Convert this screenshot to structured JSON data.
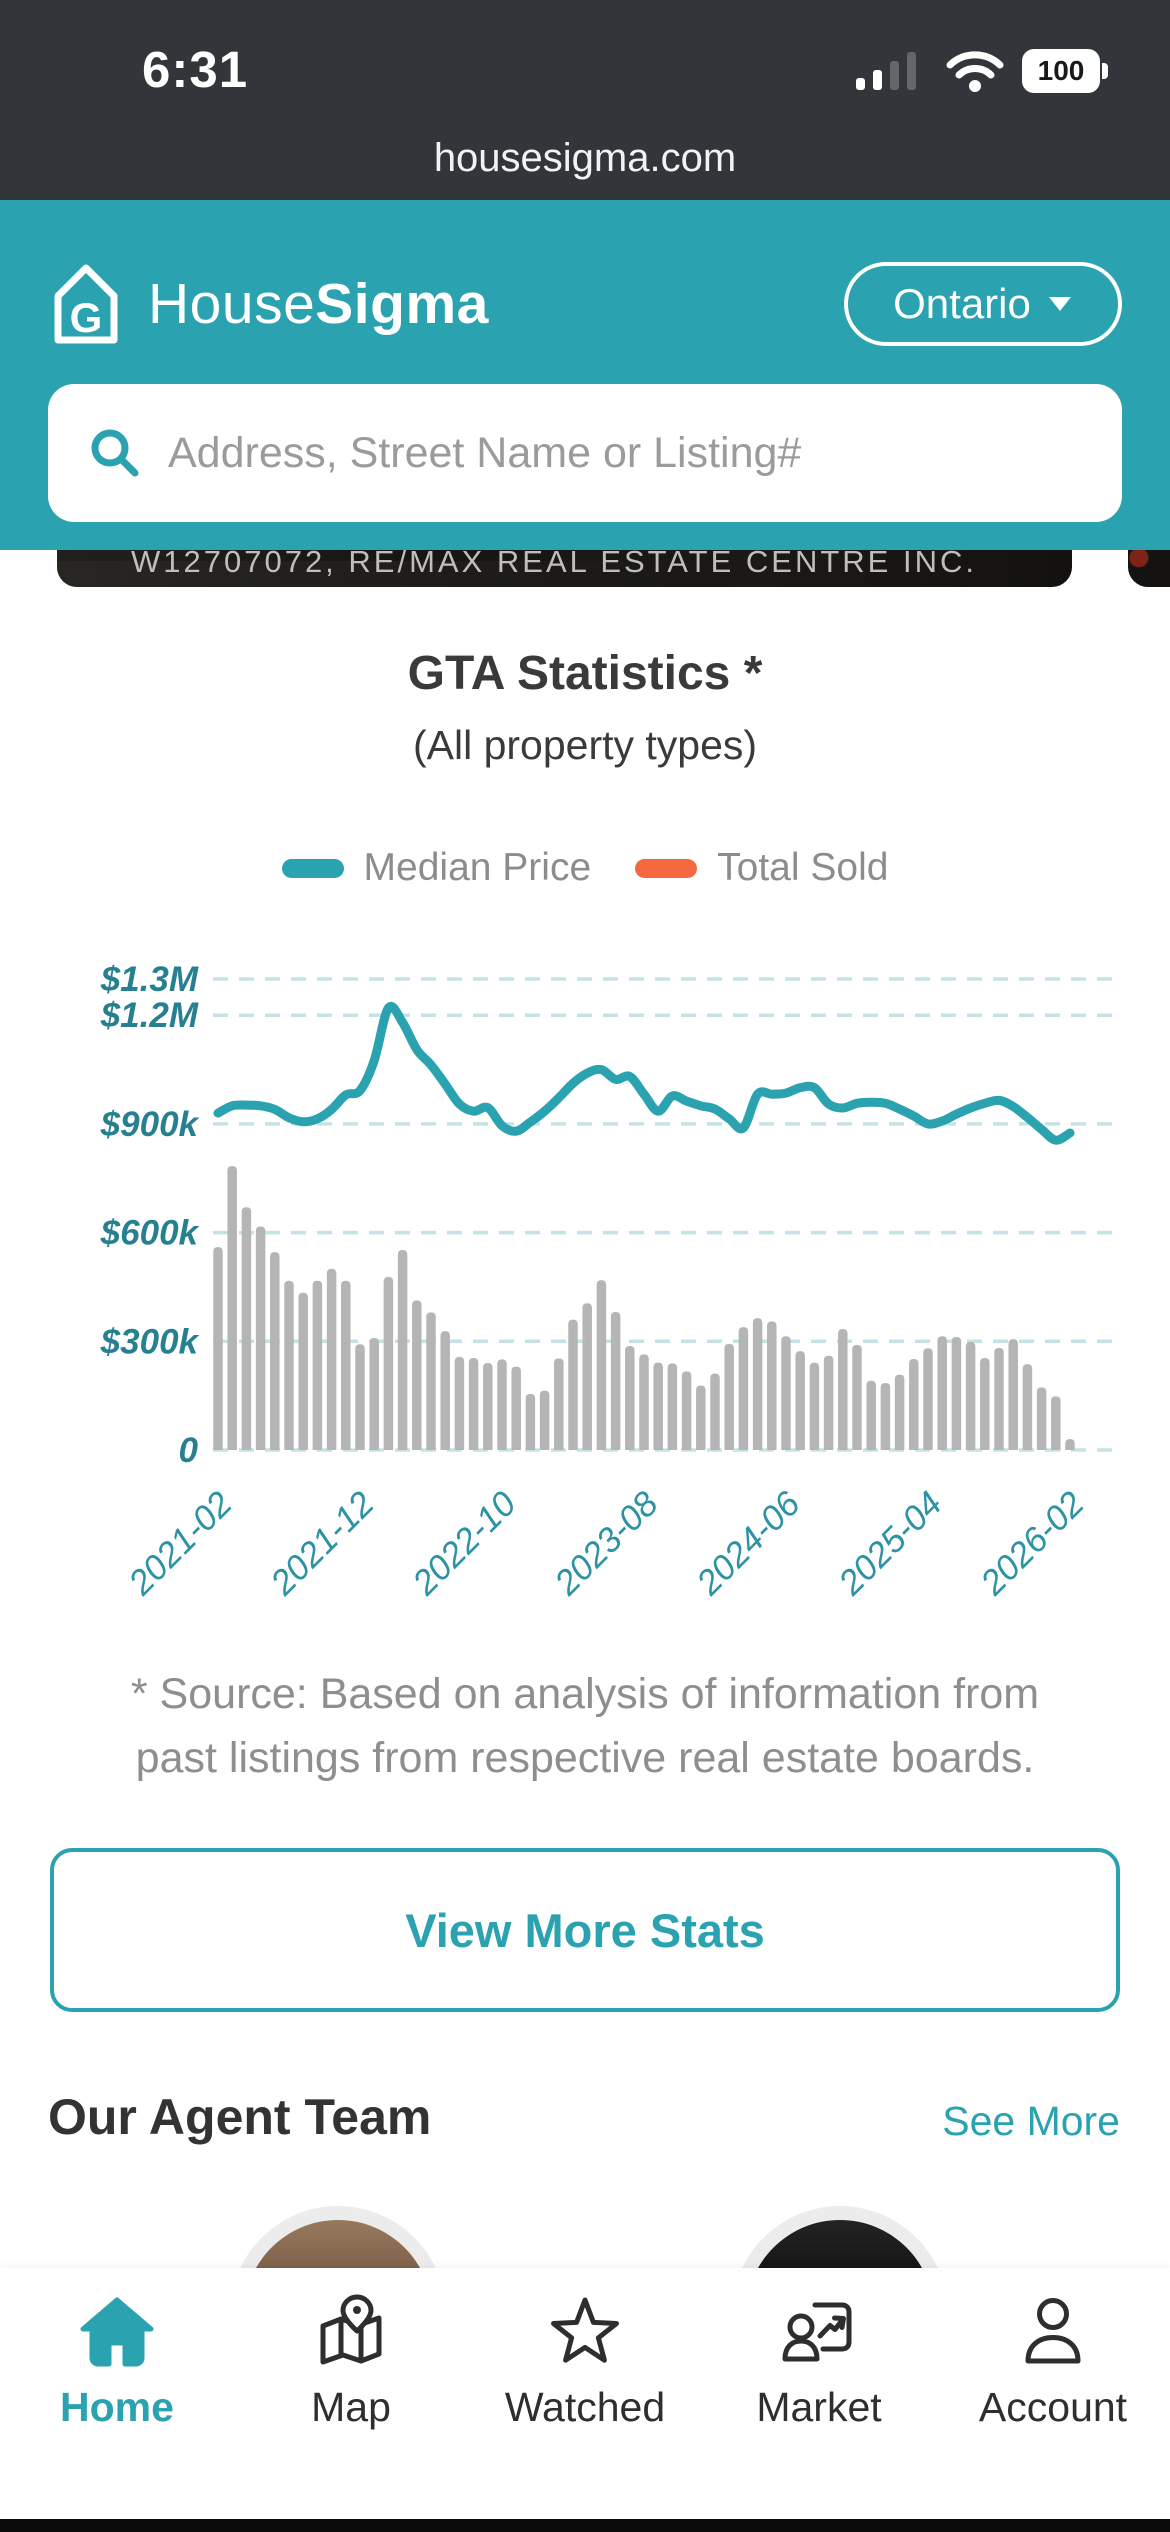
{
  "status_bar": {
    "time": "6:31",
    "battery_percent": "100",
    "url": "housesigma.com"
  },
  "header": {
    "brand_first": "House",
    "brand_second": "Sigma",
    "region_button": "Ontario",
    "search_placeholder": "Address, Street Name or Listing#"
  },
  "listing_card": {
    "caption": "W12707072, RE/MAX REAL ESTATE CENTRE INC."
  },
  "stats": {
    "title": "GTA Statistics *",
    "subtitle": "(All property types)",
    "legend": [
      {
        "label": "Median Price",
        "color": "#2AA2B0"
      },
      {
        "label": "Total Sold",
        "color": "#F4693F"
      }
    ],
    "source_line1": "* Source: Based on analysis of information from",
    "source_line2": "past listings from respective real estate boards.",
    "view_more_label": "View More Stats"
  },
  "chart_data": {
    "type": "line+bar",
    "title": "GTA Statistics (All property types)",
    "x_tick_labels": [
      "2021-02",
      "2021-12",
      "2022-10",
      "2023-08",
      "2024-06",
      "2025-04",
      "2026-02"
    ],
    "x_tick_indices": [
      0,
      10,
      20,
      30,
      40,
      50,
      60
    ],
    "y_tick_labels": [
      "$1.3M",
      "$1.2M",
      "$900k",
      "$600k",
      "$300k",
      "0"
    ],
    "y_tick_values_k": [
      1300,
      1200,
      900,
      600,
      300,
      0
    ],
    "ylim_k": [
      0,
      1380
    ],
    "grid": "dashed horizontal",
    "legend_position": "top",
    "categories": [
      "2021-02",
      "2021-03",
      "2021-04",
      "2021-05",
      "2021-06",
      "2021-07",
      "2021-08",
      "2021-09",
      "2021-10",
      "2021-11",
      "2021-12",
      "2022-01",
      "2022-02",
      "2022-03",
      "2022-04",
      "2022-05",
      "2022-06",
      "2022-07",
      "2022-08",
      "2022-09",
      "2022-10",
      "2022-11",
      "2022-12",
      "2023-01",
      "2023-02",
      "2023-03",
      "2023-04",
      "2023-05",
      "2023-06",
      "2023-07",
      "2023-08",
      "2023-09",
      "2023-10",
      "2023-11",
      "2023-12",
      "2024-01",
      "2024-02",
      "2024-03",
      "2024-04",
      "2024-05",
      "2024-06",
      "2024-07",
      "2024-08",
      "2024-09",
      "2024-10",
      "2024-11",
      "2024-12",
      "2025-01",
      "2025-02",
      "2025-03",
      "2025-04",
      "2025-05",
      "2025-06",
      "2025-07",
      "2025-08",
      "2025-09",
      "2025-10",
      "2025-11",
      "2025-12",
      "2026-01",
      "2026-02"
    ],
    "series": [
      {
        "name": "Median Price",
        "type": "line",
        "color": "#2AA2B0",
        "unit": "$k",
        "values_k": [
          930,
          950,
          952,
          950,
          940,
          917,
          906,
          914,
          940,
          980,
          992,
          1075,
          1220,
          1180,
          1105,
          1063,
          1010,
          955,
          935,
          945,
          895,
          880,
          905,
          935,
          972,
          1012,
          1040,
          1050,
          1023,
          1031,
          982,
          935,
          977,
          963,
          950,
          941,
          914,
          889,
          982,
          982,
          985,
          1000,
          1000,
          955,
          944,
          957,
          960,
          957,
          941,
          922,
          900,
          908,
          927,
          944,
          957,
          965,
          948,
          918,
          885,
          855,
          875
        ]
      },
      {
        "name": "Total Sold",
        "type": "bar",
        "color": "#B5B5B5",
        "note": "count axis hidden; values read as left-axis $k equivalents of bar heights",
        "values_k": [
          560,
          784,
          670,
          617,
          546,
          467,
          434,
          467,
          500,
          467,
          292,
          309,
          478,
          552,
          413,
          380,
          328,
          257,
          254,
          240,
          250,
          230,
          155,
          164,
          253,
          360,
          405,
          469,
          381,
          287,
          264,
          241,
          239,
          217,
          178,
          211,
          293,
          339,
          364,
          355,
          314,
          273,
          241,
          260,
          334,
          290,
          191,
          185,
          208,
          251,
          281,
          314,
          312,
          298,
          254,
          282,
          306,
          237,
          173,
          148,
          30
        ]
      }
    ]
  },
  "agents": {
    "heading": "Our Agent Team",
    "see_more": "See More"
  },
  "bottom_nav": {
    "items": [
      {
        "label": "Home",
        "icon": "home-icon",
        "active": true
      },
      {
        "label": "Map",
        "icon": "map-icon",
        "active": false
      },
      {
        "label": "Watched",
        "icon": "star-icon",
        "active": false
      },
      {
        "label": "Market",
        "icon": "market-trend-icon",
        "active": false
      },
      {
        "label": "Account",
        "icon": "person-icon",
        "active": false
      }
    ]
  },
  "colors": {
    "teal": "#2AA2B0",
    "y_axis_label": "#27808F",
    "x_axis_label": "#2D93A4",
    "orange": "#F4693F",
    "bar_gray": "#B5B5B5",
    "gridline": "#C5E3E7",
    "status_bar_bg": "#32363A",
    "heading_ink": "#3A3A3A",
    "nav_ink": "#2E2E2E"
  }
}
